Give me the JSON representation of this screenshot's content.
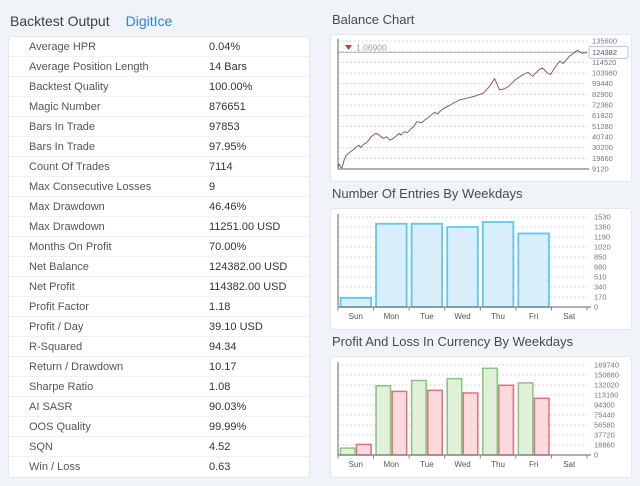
{
  "header": {
    "title": "Backtest Output",
    "link": "DigitIce"
  },
  "table": {
    "rows": [
      {
        "label": "Average HPR",
        "value": "0.04%"
      },
      {
        "label": "Average Position Length",
        "value": "14 Bars"
      },
      {
        "label": "Backtest Quality",
        "value": "100.00%"
      },
      {
        "label": "Magic Number",
        "value": "876651"
      },
      {
        "label": "Bars In Trade",
        "value": "97853"
      },
      {
        "label": "Bars In Trade",
        "value": "97.95%"
      },
      {
        "label": "Count Of Trades",
        "value": "7114"
      },
      {
        "label": "Max Consecutive Losses",
        "value": "9"
      },
      {
        "label": "Max Drawdown",
        "value": "46.46%"
      },
      {
        "label": "Max Drawdown",
        "value": "11251.00 USD"
      },
      {
        "label": "Months On Profit",
        "value": "70.00%"
      },
      {
        "label": "Net Balance",
        "value": "124382.00 USD"
      },
      {
        "label": "Net Profit",
        "value": "114382.00 USD"
      },
      {
        "label": "Profit Factor",
        "value": "1.18"
      },
      {
        "label": "Profit / Day",
        "value": "39.10 USD"
      },
      {
        "label": "R-Squared",
        "value": "94.34"
      },
      {
        "label": "Return / Drawdown",
        "value": "10.17"
      },
      {
        "label": "Sharpe Ratio",
        "value": "1.08"
      },
      {
        "label": "AI SASR",
        "value": "90.03%"
      },
      {
        "label": "OOS Quality",
        "value": "99.99%"
      },
      {
        "label": "SQN",
        "value": "4.52"
      },
      {
        "label": "Win / Loss",
        "value": "0.63"
      }
    ]
  },
  "colors": {
    "accent_link": "#2f7ff0",
    "balance_line": "#8a5c5c",
    "current_balance_line": "#a9b7d6",
    "grid": "#c9c9c9",
    "axis": "#808080",
    "blue_bar_fill": "#d9eefb",
    "blue_bar_stroke": "#5ec8f2",
    "green_bar_fill": "#e0f0d9",
    "green_bar_stroke": "#84c77e",
    "red_bar_fill": "#fadadd",
    "red_bar_stroke": "#e4707a",
    "marker_red": "#e03030"
  },
  "chart_data": [
    {
      "id": "balance",
      "type": "line",
      "title": "Balance Chart",
      "price_marker": "1.06900",
      "current_balance": 124382,
      "current_balance_label": "124382",
      "y_min": 9120,
      "y_max": 135600,
      "y_ticks": [
        9120,
        19660,
        30200,
        40740,
        51280,
        61820,
        72360,
        82900,
        93440,
        103980,
        114520,
        125060,
        135600
      ],
      "hidden_tick": 125060,
      "points": [
        [
          0,
          10000
        ],
        [
          0.5,
          14200
        ],
        [
          1,
          11000
        ],
        [
          1.6,
          10300
        ],
        [
          2.4,
          17500
        ],
        [
          3.3,
          22800
        ],
        [
          4.4,
          25000
        ],
        [
          5.4,
          26900
        ],
        [
          6.4,
          28400
        ],
        [
          7.4,
          31000
        ],
        [
          8.4,
          32700
        ],
        [
          9.1,
          30300
        ],
        [
          10.3,
          33500
        ],
        [
          11.4,
          35000
        ],
        [
          12.4,
          37700
        ],
        [
          13.3,
          41000
        ],
        [
          14.2,
          42600
        ],
        [
          15.1,
          44300
        ],
        [
          16.2,
          43600
        ],
        [
          17.3,
          41000
        ],
        [
          18.3,
          39300
        ],
        [
          19.5,
          41000
        ],
        [
          20.9,
          37700
        ],
        [
          22.2,
          39300
        ],
        [
          23.4,
          41700
        ],
        [
          24.6,
          44300
        ],
        [
          25.3,
          42600
        ],
        [
          26.6,
          46000
        ],
        [
          27.8,
          45000
        ],
        [
          29.1,
          48300
        ],
        [
          30.4,
          51000
        ],
        [
          31,
          53700
        ],
        [
          31.7,
          55900
        ],
        [
          33.6,
          54900
        ],
        [
          34.9,
          57600
        ],
        [
          36.2,
          59900
        ],
        [
          37.5,
          62600
        ],
        [
          38.8,
          64900
        ],
        [
          40,
          63600
        ],
        [
          41.3,
          66900
        ],
        [
          42.6,
          69200
        ],
        [
          43.9,
          70900
        ],
        [
          45.2,
          72600
        ],
        [
          46.4,
          74200
        ],
        [
          47.7,
          75900
        ],
        [
          49,
          77600
        ],
        [
          50.3,
          78200
        ],
        [
          51.6,
          79100
        ],
        [
          54.5,
          80800
        ],
        [
          58.4,
          84100
        ],
        [
          60.9,
          90800
        ],
        [
          62.9,
          98400
        ],
        [
          64.8,
          87500
        ],
        [
          66.7,
          88200
        ],
        [
          68.6,
          90800
        ],
        [
          71.2,
          97400
        ],
        [
          74.4,
          102400
        ],
        [
          76.3,
          104700
        ],
        [
          78.2,
          100700
        ],
        [
          80.8,
          107400
        ],
        [
          82.1,
          109000
        ],
        [
          84,
          104100
        ],
        [
          85.3,
          102400
        ],
        [
          87.9,
          112400
        ],
        [
          89.1,
          115700
        ],
        [
          90.4,
          113400
        ],
        [
          93,
          120700
        ],
        [
          94.9,
          124000
        ],
        [
          96.2,
          126600
        ],
        [
          98.1,
          123300
        ],
        [
          100,
          124382
        ]
      ]
    },
    {
      "id": "entries",
      "type": "bar",
      "title": "Number Of Entries By Weekdays",
      "categories": [
        "Sun",
        "Mon",
        "Tue",
        "Wed",
        "Thu",
        "Fri",
        "Sat"
      ],
      "values": [
        155,
        1415,
        1415,
        1360,
        1445,
        1250,
        0
      ],
      "y_max": 1530,
      "y_ticks": [
        0,
        170,
        340,
        510,
        680,
        850,
        1020,
        1190,
        1360,
        1530
      ]
    },
    {
      "id": "pnl",
      "type": "bar-pair",
      "title": "Profit And Loss In Currency By Weekdays",
      "categories": [
        "Sun",
        "Mon",
        "Tue",
        "Wed",
        "Thu",
        "Fri",
        "Sat"
      ],
      "series": [
        {
          "name": "profit",
          "values": [
            13000,
            130500,
            140500,
            144000,
            163500,
            136000,
            0
          ]
        },
        {
          "name": "loss",
          "values": [
            20000,
            120000,
            122000,
            117000,
            131500,
            107000,
            0
          ]
        }
      ],
      "y_max": 169740,
      "y_ticks": [
        0,
        18860,
        37720,
        56580,
        75440,
        94300,
        113160,
        132020,
        150880,
        169740
      ]
    }
  ]
}
